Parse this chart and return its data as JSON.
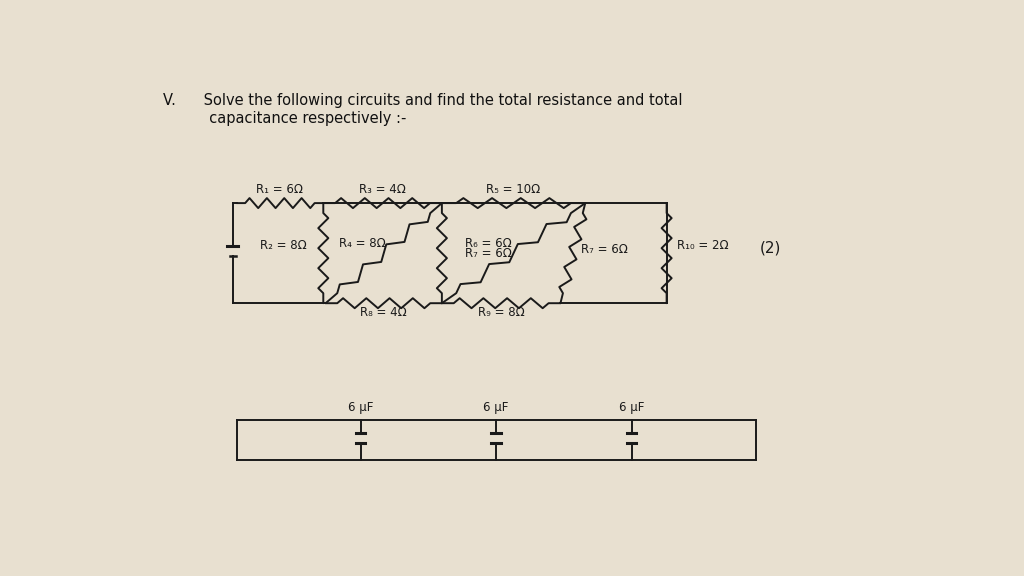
{
  "bg_color": "#e8e0d0",
  "paper_color": "#f0ece0",
  "line_color": "#1a1a1a",
  "label_fontsize": 8.5,
  "title_fontsize": 10.5,
  "title_line1": "V.      Solve the following circuits and find the total resistance and total",
  "title_line2": "          capacitance respectively :-",
  "annotation_2": "(2)",
  "R1_label": "R₁ = 6Ω",
  "R2_label": "R₂ = 8Ω",
  "R3_label": "R₃ = 4Ω",
  "R4_label": "R₄ = 8Ω",
  "R5_label": "R₅ = 10Ω",
  "R6_label": "R₆ = 6Ω",
  "R7_label": "R₇ = 6Ω",
  "R8_label": "R₈ = 4Ω",
  "R9_label": "R₉ = 8Ω",
  "R10_label": "R₁₀ = 2Ω",
  "C1_label": "6 μF",
  "C2_label": "6 μF",
  "C3_label": "6 μF"
}
